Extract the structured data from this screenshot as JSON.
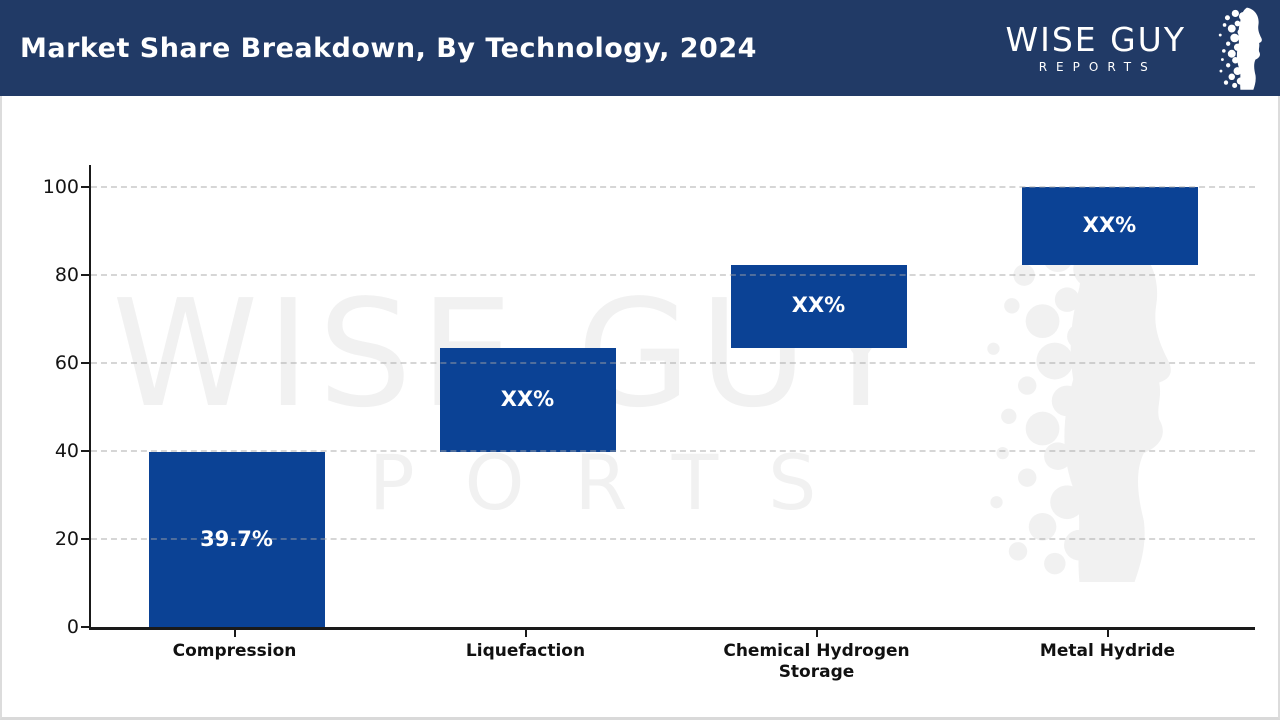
{
  "header": {
    "title": "Market Share Breakdown, By Technology, 2024",
    "logo_line1": "WISE GUY",
    "logo_line2": "REPORTS"
  },
  "watermark": {
    "line1": "WISE GUY",
    "line2": "REPORTS"
  },
  "colors": {
    "header_bg": "#213a66",
    "bar": "#0b4295",
    "grid": "#d9d9d9",
    "axis": "#1a1a1a",
    "watermark": "#f1f1f1"
  },
  "chart_data": {
    "type": "bar",
    "subtype": "waterfall",
    "title": "Market Share Breakdown, By Technology, 2024",
    "xlabel": "",
    "ylabel": "",
    "ylim": [
      0,
      100
    ],
    "y_ticks": [
      0,
      20,
      40,
      60,
      80,
      100
    ],
    "grid": true,
    "legend": false,
    "bar_color": "#0b4295",
    "categories": [
      "Compression",
      "Liquefaction",
      "Chemical Hydrogen Storage",
      "Metal Hydride"
    ],
    "segments": [
      {
        "category": "Compression",
        "start": 0,
        "end": 39.7,
        "label": "39.7%"
      },
      {
        "category": "Liquefaction",
        "start": 39.7,
        "end": 63.5,
        "label": "XX%"
      },
      {
        "category": "Chemical Hydrogen Storage",
        "start": 63.5,
        "end": 82.3,
        "label": "XX%"
      },
      {
        "category": "Metal Hydride",
        "start": 82.3,
        "end": 100,
        "label": "XX%"
      }
    ]
  }
}
